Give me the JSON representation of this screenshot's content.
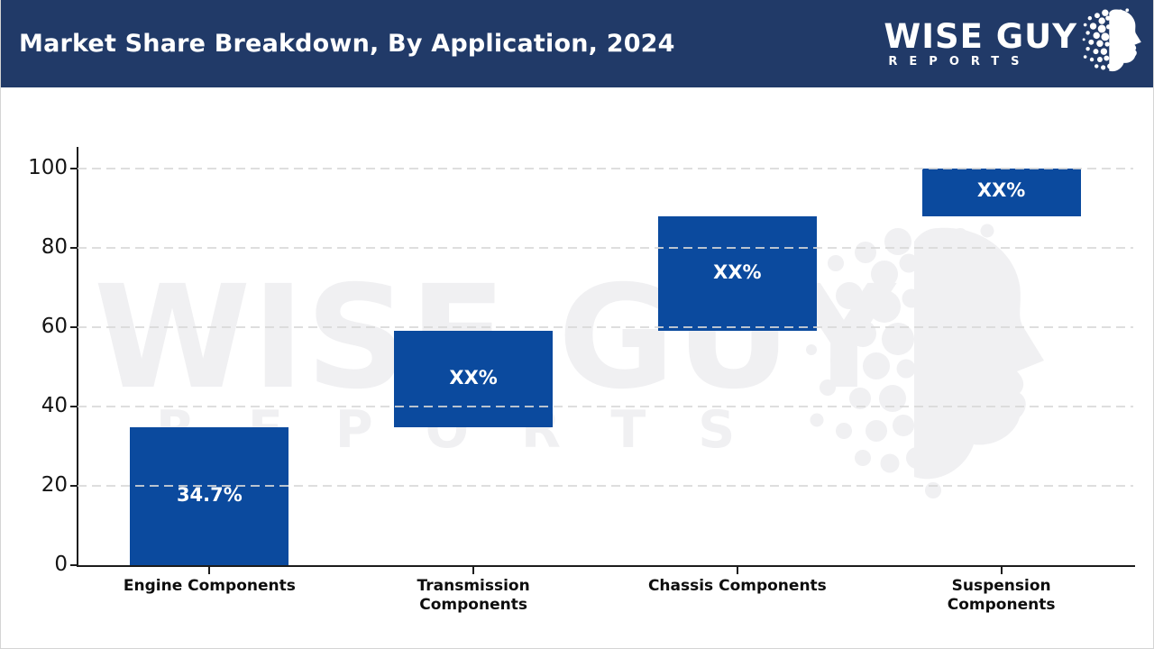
{
  "header": {
    "title": "Market Share Breakdown, By Application, 2024",
    "logo": {
      "line1": "WISE GUY",
      "line2": "REPORTS"
    }
  },
  "watermark": {
    "line1": "WISE GUY",
    "line2": "REPORTS"
  },
  "colors": {
    "header_bg": "#213a68",
    "bar": "#0b4a9e",
    "grid": "#d8d8d8",
    "axis": "#1c1c1c",
    "bar_label": "#ffffff",
    "watermark": "#f0f0f2",
    "card_border": "#d4d4d4"
  },
  "chart_data": {
    "type": "bar",
    "subtype": "waterfall",
    "title": "Market Share Breakdown, By Application, 2024",
    "categories": [
      "Engine Components",
      "Transmission Components",
      "Chassis Components",
      "Suspension Components"
    ],
    "segments": [
      {
        "category": "Engine Components",
        "start": 0,
        "end": 34.7,
        "label": "34.7%"
      },
      {
        "category": "Transmission Components",
        "start": 34.7,
        "end": 59,
        "label": "XX%"
      },
      {
        "category": "Chassis Components",
        "start": 59,
        "end": 88,
        "label": "XX%"
      },
      {
        "category": "Suspension Components",
        "start": 88,
        "end": 100,
        "label": "XX%"
      }
    ],
    "ylabel": "",
    "xlabel": "",
    "ylim": [
      0,
      100
    ],
    "yticks": [
      0,
      20,
      40,
      60,
      80,
      100
    ],
    "grid": "horizontal-dashed",
    "legend": "none",
    "bar_color": "#0b4a9e"
  }
}
